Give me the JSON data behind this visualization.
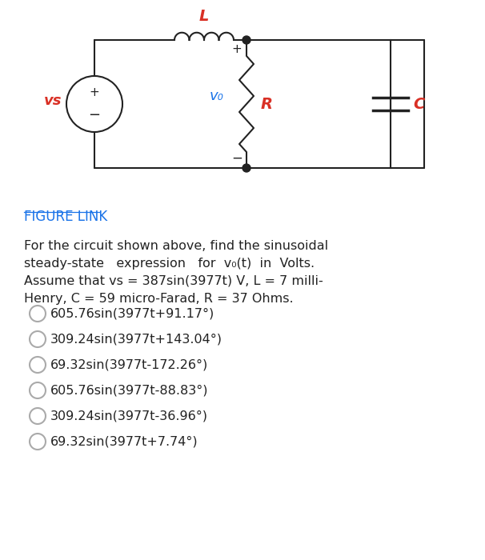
{
  "bg_color": "#ffffff",
  "title_color": "#1a73e8",
  "figure_link_text": "FIGURE LINK",
  "body_text_line1": "For the circuit shown above, find the sinusoidal",
  "body_text_line2": "steady-state   expression   for  v₀(t)  in  Volts.",
  "body_text_line3": "Assume that vs = 387sin(3977t) V, L = 7 milli-",
  "body_text_line4": "Henry, C = 59 micro-Farad, R = 37 Ohms.",
  "options": [
    "605.76sin(3977t+91.17°)",
    "309.24sin(3977t+143.04°)",
    "69.32sin(3977t-172.26°)",
    "605.76sin(3977t-88.83°)",
    "309.24sin(3977t-36.96°)",
    "69.32sin(3977t+7.74°)"
  ],
  "vs_color": "#d93025",
  "L_color": "#d93025",
  "vo_color": "#1a73e8",
  "R_color": "#d93025",
  "C_color": "#d93025",
  "circuit_line_color": "#222222",
  "text_color": "#222222",
  "radio_color": "#aaaaaa"
}
